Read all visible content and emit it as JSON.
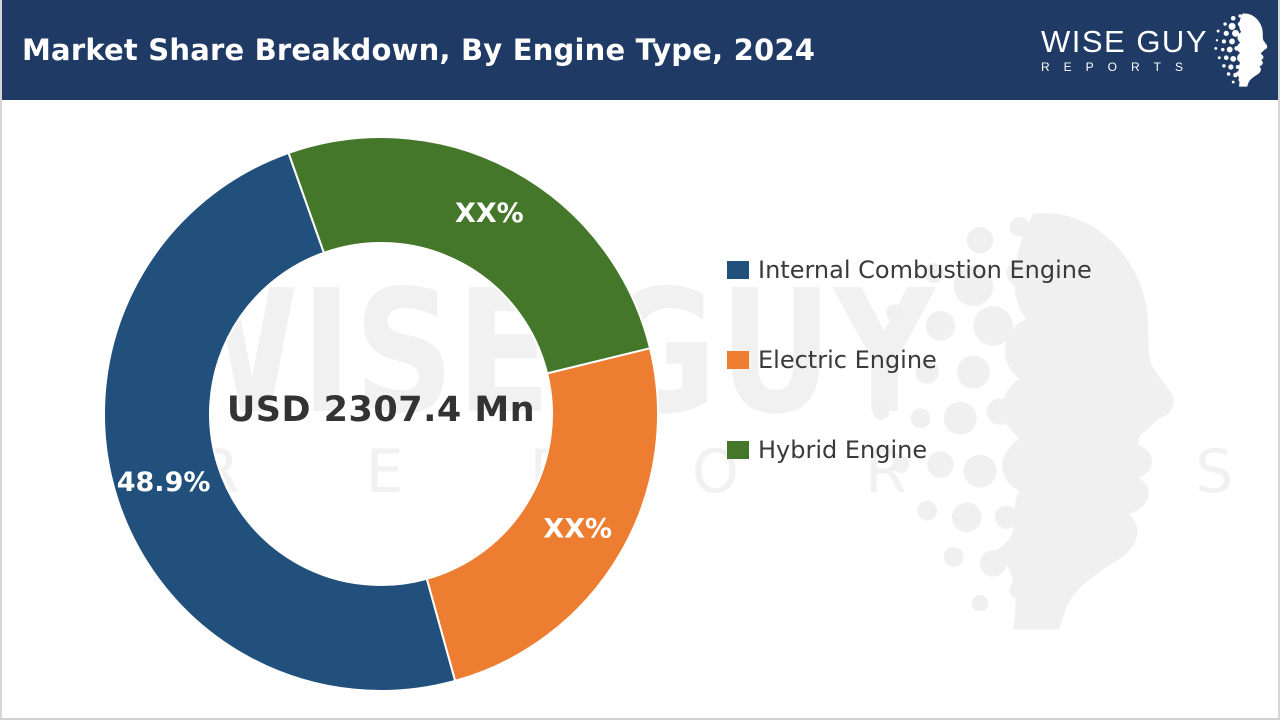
{
  "header": {
    "title": "Market Share Breakdown, By Engine Type, 2024",
    "logo": {
      "wordmark": "WISE GUY",
      "subtitle": "REPORTS"
    }
  },
  "watermark": {
    "wordmark": "WISE GUY",
    "subtitle": "REPORTS"
  },
  "chart_data": {
    "type": "pie",
    "subtype": "donut",
    "title": "Market Share Breakdown, By Engine Type, 2024",
    "center_label": "USD 2307.4 Mn",
    "start_angle_deg": 109.5,
    "direction": "counterclockwise",
    "legend_position": "right",
    "segments": [
      {
        "name": "Internal Combustion Engine",
        "value_pct": 48.9,
        "label": "48.9%",
        "color": "#21507c"
      },
      {
        "name": "Electric Engine",
        "value_pct": 24.5,
        "label": "XX%",
        "color": "#ed7d31"
      },
      {
        "name": "Hybrid Engine",
        "value_pct": 26.6,
        "label": "XX%",
        "color": "#44772a"
      }
    ],
    "colors": {
      "header_bar": "#1f3a64",
      "center_text": "#333333",
      "legend_text": "#3a3a3a",
      "watermark": "#f1f1f1"
    }
  }
}
